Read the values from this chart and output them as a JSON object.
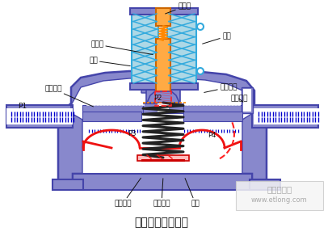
{
  "bg": "white",
  "vc": "#8888cc",
  "ve": "#4444aa",
  "cf": "#add8e6",
  "cfe": "#33aadd",
  "pf": "#ffaa44",
  "pe": "#cc6600",
  "so": "#ff8800",
  "sb": "#222222",
  "diaph": "#ee1111",
  "flow_blue": "#0000cc",
  "arrow_red": "#cc0000",
  "dash_red": "#ff2222",
  "orange_dash": "#ff8800",
  "lc": "#111111",
  "wg": "#aaaaaa",
  "labels": {
    "ding": "定鐵心",
    "dong": "动鐵心",
    "xian": "线圈",
    "ping": "平衡孔道",
    "dan": "弹簧",
    "dao": "导阁阀座",
    "jie": "渗压孔道",
    "zhu_zuo": "主阀阀座",
    "zhu_zhi": "主阀阀芯",
    "mo": "膜片",
    "title": "管道联系式电磁阀",
    "wm1": "易龙商务网",
    "wm2": "www.etlong.com"
  }
}
